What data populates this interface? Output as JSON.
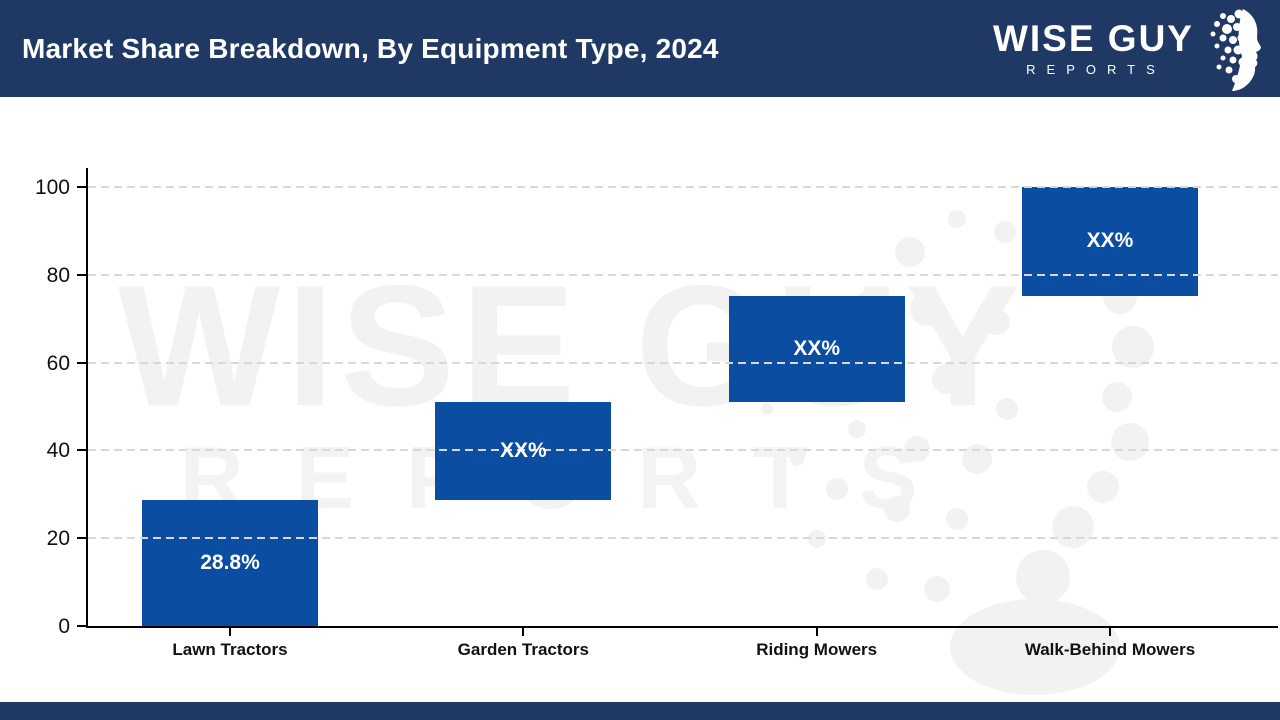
{
  "header": {
    "title": "Market Share Breakdown, By Equipment Type, 2024",
    "logo": {
      "line1": "WISE GUY",
      "line2": "REPORTS"
    }
  },
  "watermark": {
    "line1": "WISE GUY",
    "line2": "REPORTS"
  },
  "colors": {
    "header_bg": "#1F3864",
    "footer_bg": "#1F3864",
    "bar": "#0B4DA1",
    "bar_label": "#FFFFFF",
    "gridline": "#D8D8D8",
    "axis": "#000000",
    "category_label": "#111111",
    "watermark": "#F2F2F2"
  },
  "chart_data": {
    "type": "bar",
    "subtype": "floating-waterfall",
    "title": "Market Share Breakdown, By Equipment Type, 2024",
    "xlabel": "",
    "ylabel": "",
    "ylim": [
      0,
      100
    ],
    "yticks": [
      0,
      20,
      40,
      60,
      80,
      100
    ],
    "grid": "horizontal-dashed-above-bars",
    "legend": "none",
    "categories": [
      "Lawn Tractors",
      "Garden Tractors",
      "Riding Mowers",
      "Walk-Behind Mowers"
    ],
    "segments": [
      {
        "category": "Lawn Tractors",
        "start": 0,
        "end": 28.8,
        "value": 28.8,
        "label": "28.8%"
      },
      {
        "category": "Garden Tractors",
        "start": 28.8,
        "end": 51.0,
        "value": 22.2,
        "label": "XX%"
      },
      {
        "category": "Riding Mowers",
        "start": 51.0,
        "end": 75.2,
        "value": 24.2,
        "label": "XX%"
      },
      {
        "category": "Walk-Behind Mowers",
        "start": 75.2,
        "end": 100.0,
        "value": 24.8,
        "label": "XX%"
      }
    ]
  }
}
